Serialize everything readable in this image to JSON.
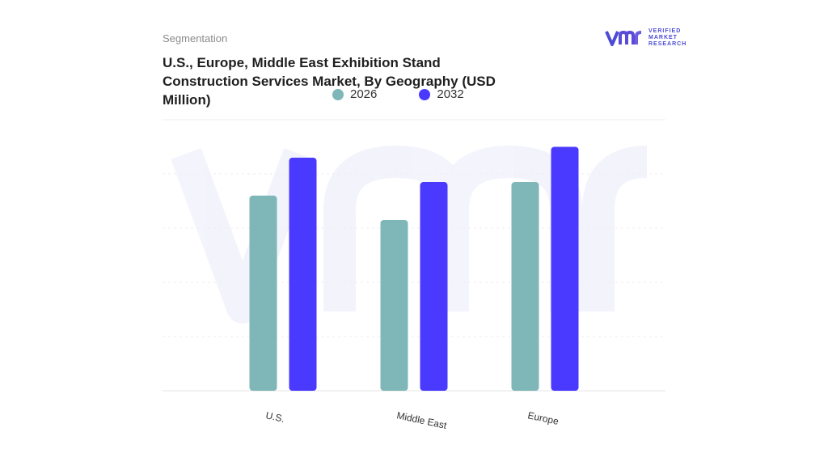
{
  "header": {
    "kicker": "Segmentation",
    "title_line1": "U.S., Europe, Middle East Exhibition Stand",
    "title_line2": "Construction Services Market, By Geography (USD",
    "title_line3": "Million)"
  },
  "logo": {
    "mark": "vmr",
    "line1": "VERIFIED",
    "line2": "MARKET",
    "line3": "RESEARCH",
    "color": "#4b4bd6"
  },
  "chart_data": {
    "type": "bar",
    "title": "U.S., Europe, Middle East Exhibition Stand Construction Services Market, By Geography (USD Million)",
    "categories": [
      "U.S.",
      "Middle East",
      "Europe"
    ],
    "series": [
      {
        "name": "2026",
        "color": "#7fb7b9",
        "values": [
          72,
          63,
          77
        ]
      },
      {
        "name": "2032",
        "color": "#4a3aff",
        "values": [
          86,
          77,
          90
        ]
      }
    ],
    "ylim": [
      0,
      100
    ],
    "grid": true,
    "legend_position": "top",
    "xlabel": "",
    "ylabel": ""
  }
}
